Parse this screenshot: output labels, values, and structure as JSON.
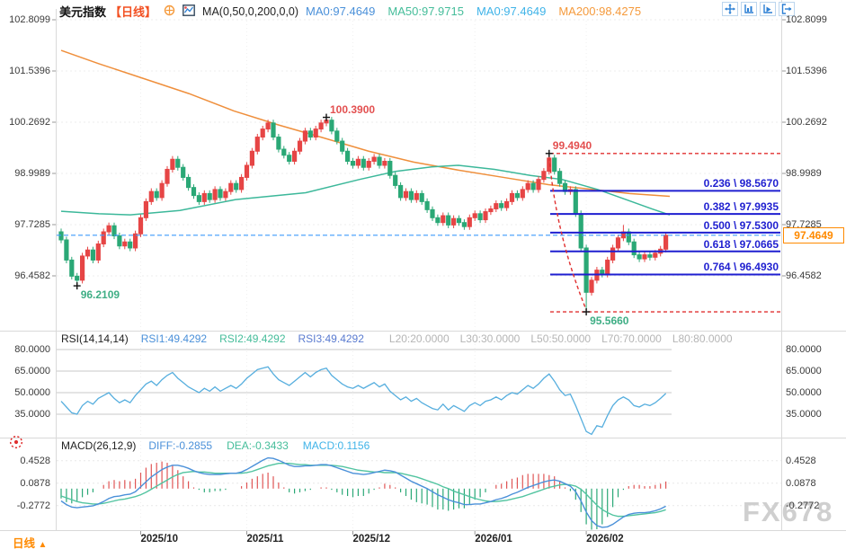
{
  "header": {
    "symbol": "美元指数",
    "period": "【日线】",
    "ma_settings": "MA(0,50,0,200,0,0)",
    "ma_values": [
      {
        "text": "MA0:97.4649",
        "color": "#4a90d9"
      },
      {
        "text": "MA50:97.9715",
        "color": "#45bd9a"
      },
      {
        "text": "MA0:97.4649",
        "color": "#3fb3e8"
      },
      {
        "text": "MA200:98.4275",
        "color": "#f59a3c"
      }
    ]
  },
  "toolbar": {
    "icons": [
      "move-icon",
      "scale-axis-icon",
      "axis-play-icon",
      "exit-chart-icon"
    ]
  },
  "price_axis_ticks": [
    "102.8099",
    "101.5396",
    "100.2692",
    "98.9989",
    "97.7285",
    "96.4582"
  ],
  "price_box_value": "97.4649",
  "rsi_panel": {
    "title": "RSI(14,14,14)",
    "series_labels": [
      {
        "text": "RSI1:49.4292",
        "color": "#4a90d9"
      },
      {
        "text": "RSI2:49.4292",
        "color": "#45bd9a"
      },
      {
        "text": "RSI3:49.4292",
        "color": "#5a7bd0"
      }
    ],
    "level_labels": [
      "L20:20.0000",
      "L30:30.0000",
      "L50:50.0000",
      "L70:70.0000",
      "L80:80.0000"
    ],
    "axis_ticks": [
      "80.0000",
      "65.0000",
      "50.0000",
      "35.0000"
    ]
  },
  "macd_panel": {
    "title": "MACD(26,12,9)",
    "diff_label": {
      "text": "DIFF:-0.2855",
      "color": "#4a90d9"
    },
    "dea_label": {
      "text": "DEA:-0.3433",
      "color": "#45bd9a"
    },
    "macd_label": {
      "text": "MACD:0.1156",
      "color": "#3fb3e8"
    },
    "axis_ticks": [
      "0.4528",
      "0.0878",
      "-0.2772"
    ]
  },
  "time_axis": {
    "labels": [
      "2025/10",
      "2025/11",
      "2025/12",
      "2026/01",
      "2026/02"
    ],
    "label_indices": [
      15,
      35,
      55,
      78,
      99
    ]
  },
  "period_selector": "日线",
  "watermark": "FX678",
  "chart_data": {
    "type": "candlestick",
    "title": "美元指数 日线 (US Dollar Index, daily)",
    "up_color": "#e64545",
    "down_color": "#2aa876",
    "price_ylim": [
      95.3,
      102.9
    ],
    "first_open": 97.55,
    "closes": [
      97.35,
      96.85,
      96.45,
      96.35,
      96.95,
      97.1,
      96.85,
      97.25,
      97.55,
      97.7,
      97.45,
      97.2,
      97.3,
      97.15,
      97.5,
      97.9,
      98.3,
      98.55,
      98.4,
      98.75,
      99.1,
      99.35,
      99.15,
      98.9,
      98.65,
      98.45,
      98.3,
      98.5,
      98.35,
      98.6,
      98.4,
      98.55,
      98.75,
      98.6,
      98.9,
      99.2,
      99.55,
      99.9,
      100.1,
      100.25,
      99.9,
      99.6,
      99.45,
      99.3,
      99.55,
      99.8,
      100.05,
      99.9,
      100.1,
      100.25,
      100.32,
      100.05,
      99.8,
      99.55,
      99.3,
      99.2,
      99.35,
      99.15,
      99.3,
      99.4,
      99.2,
      99.3,
      98.95,
      98.7,
      98.4,
      98.55,
      98.35,
      98.5,
      98.3,
      98.1,
      97.9,
      97.78,
      97.95,
      97.72,
      97.88,
      97.78,
      97.68,
      97.9,
      98.0,
      97.85,
      98.05,
      98.12,
      98.25,
      98.15,
      98.3,
      98.5,
      98.4,
      98.6,
      98.75,
      98.6,
      98.85,
      99.05,
      99.38,
      99.05,
      98.75,
      98.55,
      98.6,
      98.0,
      97.15,
      96.05,
      96.35,
      96.6,
      96.5,
      96.85,
      97.15,
      97.4,
      97.55,
      97.3,
      96.98,
      96.88,
      96.98,
      96.92,
      97.02,
      97.12,
      97.4649
    ],
    "wick_overrides": {
      "3": {
        "low": 96.2109
      },
      "50": {
        "high": 100.39
      },
      "92": {
        "high": 99.494
      },
      "99": {
        "low": 95.566
      },
      "106": {
        "high": 97.72
      },
      "114": {
        "high": 97.53
      }
    },
    "annotations": [
      {
        "text": "100.3900",
        "price": 100.39,
        "index": 50,
        "color": "#e35050",
        "side": "above"
      },
      {
        "text": "96.2109",
        "price": 96.2109,
        "index": 3,
        "color": "#3fae85",
        "side": "below"
      },
      {
        "text": "99.4940",
        "price": 99.494,
        "index": 92,
        "color": "#e35050",
        "side": "above"
      },
      {
        "text": "95.5660",
        "price": 95.566,
        "index": 99,
        "color": "#3fae85",
        "side": "below"
      }
    ],
    "fib_levels": [
      {
        "label": "0.236 \\ 98.5670",
        "price": 98.567
      },
      {
        "label": "0.382 \\ 97.9935",
        "price": 97.9935
      },
      {
        "label": "0.500 \\ 97.5300",
        "price": 97.53
      },
      {
        "label": "0.618 \\ 97.0665",
        "price": 97.0665
      },
      {
        "label": "0.764 \\ 96.4930",
        "price": 96.493
      }
    ],
    "fib_line_color": "#1f1fd0",
    "swing_high_line": 99.494,
    "swing_low_line": 95.566,
    "last_price": 97.4649,
    "last_price_line_color": "#3d9bfc",
    "ma50": {
      "color": "#3cb89a",
      "points": [
        [
          68,
          98.06
        ],
        [
          110,
          98.0
        ],
        [
          145,
          97.97
        ],
        [
          200,
          98.08
        ],
        [
          262,
          98.35
        ],
        [
          340,
          98.52
        ],
        [
          400,
          98.85
        ],
        [
          440,
          99.05
        ],
        [
          480,
          99.16
        ],
        [
          510,
          99.2
        ],
        [
          550,
          99.1
        ],
        [
          590,
          98.95
        ],
        [
          625,
          98.85
        ],
        [
          665,
          98.6
        ],
        [
          700,
          98.32
        ],
        [
          725,
          98.12
        ],
        [
          745,
          97.97
        ]
      ]
    },
    "ma200": {
      "color": "#ef8f3c",
      "points": [
        [
          68,
          102.05
        ],
        [
          110,
          101.72
        ],
        [
          160,
          101.35
        ],
        [
          210,
          100.98
        ],
        [
          260,
          100.55
        ],
        [
          310,
          100.2
        ],
        [
          360,
          99.88
        ],
        [
          410,
          99.55
        ],
        [
          460,
          99.28
        ],
        [
          510,
          99.08
        ],
        [
          560,
          98.9
        ],
        [
          610,
          98.72
        ],
        [
          660,
          98.6
        ],
        [
          700,
          98.5
        ],
        [
          745,
          98.43
        ]
      ]
    },
    "rsi": {
      "color": "#56aede",
      "ylim": [
        15,
        85
      ],
      "grid": [
        80,
        65,
        50,
        35
      ],
      "values": [
        44,
        40,
        36,
        35,
        41,
        44,
        42,
        46,
        48,
        50,
        46,
        43,
        45,
        43,
        48,
        52,
        56,
        58,
        55,
        59,
        62,
        64,
        60,
        57,
        54,
        52,
        50,
        53,
        51,
        54,
        51,
        53,
        55,
        53,
        56,
        60,
        63,
        66,
        67,
        68,
        63,
        59,
        57,
        55,
        58,
        61,
        64,
        61,
        64,
        66,
        67,
        62,
        59,
        56,
        54,
        53,
        55,
        53,
        55,
        57,
        54,
        56,
        51,
        48,
        45,
        47,
        44,
        46,
        43,
        41,
        39,
        38,
        42,
        38,
        41,
        39,
        37,
        41,
        43,
        41,
        44,
        45,
        47,
        45,
        48,
        50,
        49,
        52,
        55,
        53,
        56,
        60,
        63,
        58,
        52,
        48,
        49,
        41,
        32,
        23,
        21,
        27,
        26,
        34,
        41,
        45,
        47,
        45,
        41,
        40,
        42,
        41,
        43,
        46,
        49.43
      ]
    },
    "macd": {
      "diff_color": "#4a90d9",
      "dea_color": "#52c4a0",
      "hist_up_color": "#e05555",
      "hist_down_color": "#2aa876",
      "diff": [
        -0.2,
        -0.26,
        -0.3,
        -0.31,
        -0.3,
        -0.29,
        -0.28,
        -0.25,
        -0.21,
        -0.16,
        -0.13,
        -0.12,
        -0.1,
        -0.09,
        -0.05,
        0.03,
        0.11,
        0.19,
        0.25,
        0.31,
        0.35,
        0.38,
        0.38,
        0.36,
        0.33,
        0.29,
        0.26,
        0.24,
        0.23,
        0.23,
        0.23,
        0.24,
        0.25,
        0.25,
        0.27,
        0.31,
        0.36,
        0.41,
        0.46,
        0.5,
        0.49,
        0.46,
        0.42,
        0.38,
        0.36,
        0.36,
        0.37,
        0.37,
        0.38,
        0.39,
        0.39,
        0.37,
        0.34,
        0.31,
        0.28,
        0.25,
        0.24,
        0.23,
        0.24,
        0.26,
        0.28,
        0.3,
        0.29,
        0.27,
        0.22,
        0.17,
        0.12,
        0.08,
        0.04,
        0.0,
        -0.05,
        -0.1,
        -0.14,
        -0.18,
        -0.21,
        -0.23,
        -0.26,
        -0.26,
        -0.25,
        -0.25,
        -0.23,
        -0.21,
        -0.18,
        -0.16,
        -0.13,
        -0.09,
        -0.06,
        -0.02,
        0.02,
        0.05,
        0.08,
        0.11,
        0.13,
        0.14,
        0.12,
        0.08,
        0.04,
        -0.05,
        -0.2,
        -0.38,
        -0.52,
        -0.6,
        -0.63,
        -0.62,
        -0.58,
        -0.52,
        -0.46,
        -0.42,
        -0.4,
        -0.39,
        -0.39,
        -0.38,
        -0.36,
        -0.33,
        -0.2855
      ],
      "dea": [
        -0.12,
        -0.15,
        -0.18,
        -0.21,
        -0.23,
        -0.24,
        -0.25,
        -0.25,
        -0.24,
        -0.22,
        -0.2,
        -0.18,
        -0.17,
        -0.15,
        -0.13,
        -0.1,
        -0.06,
        -0.01,
        0.04,
        0.09,
        0.14,
        0.19,
        0.23,
        0.26,
        0.27,
        0.28,
        0.27,
        0.27,
        0.26,
        0.25,
        0.25,
        0.25,
        0.25,
        0.25,
        0.25,
        0.26,
        0.28,
        0.31,
        0.34,
        0.37,
        0.39,
        0.41,
        0.41,
        0.41,
        0.4,
        0.39,
        0.39,
        0.38,
        0.38,
        0.38,
        0.38,
        0.38,
        0.37,
        0.36,
        0.34,
        0.32,
        0.3,
        0.29,
        0.28,
        0.27,
        0.27,
        0.26,
        0.26,
        0.26,
        0.25,
        0.23,
        0.21,
        0.19,
        0.16,
        0.13,
        0.1,
        0.07,
        0.03,
        0.0,
        -0.04,
        -0.07,
        -0.1,
        -0.13,
        -0.16,
        -0.18,
        -0.2,
        -0.21,
        -0.21,
        -0.2,
        -0.19,
        -0.17,
        -0.15,
        -0.13,
        -0.1,
        -0.07,
        -0.04,
        -0.01,
        0.02,
        0.04,
        0.06,
        0.07,
        0.06,
        0.04,
        -0.01,
        -0.09,
        -0.18,
        -0.27,
        -0.34,
        -0.39,
        -0.43,
        -0.45,
        -0.45,
        -0.44,
        -0.43,
        -0.42,
        -0.41,
        -0.4,
        -0.39,
        -0.37,
        -0.3433
      ]
    }
  }
}
